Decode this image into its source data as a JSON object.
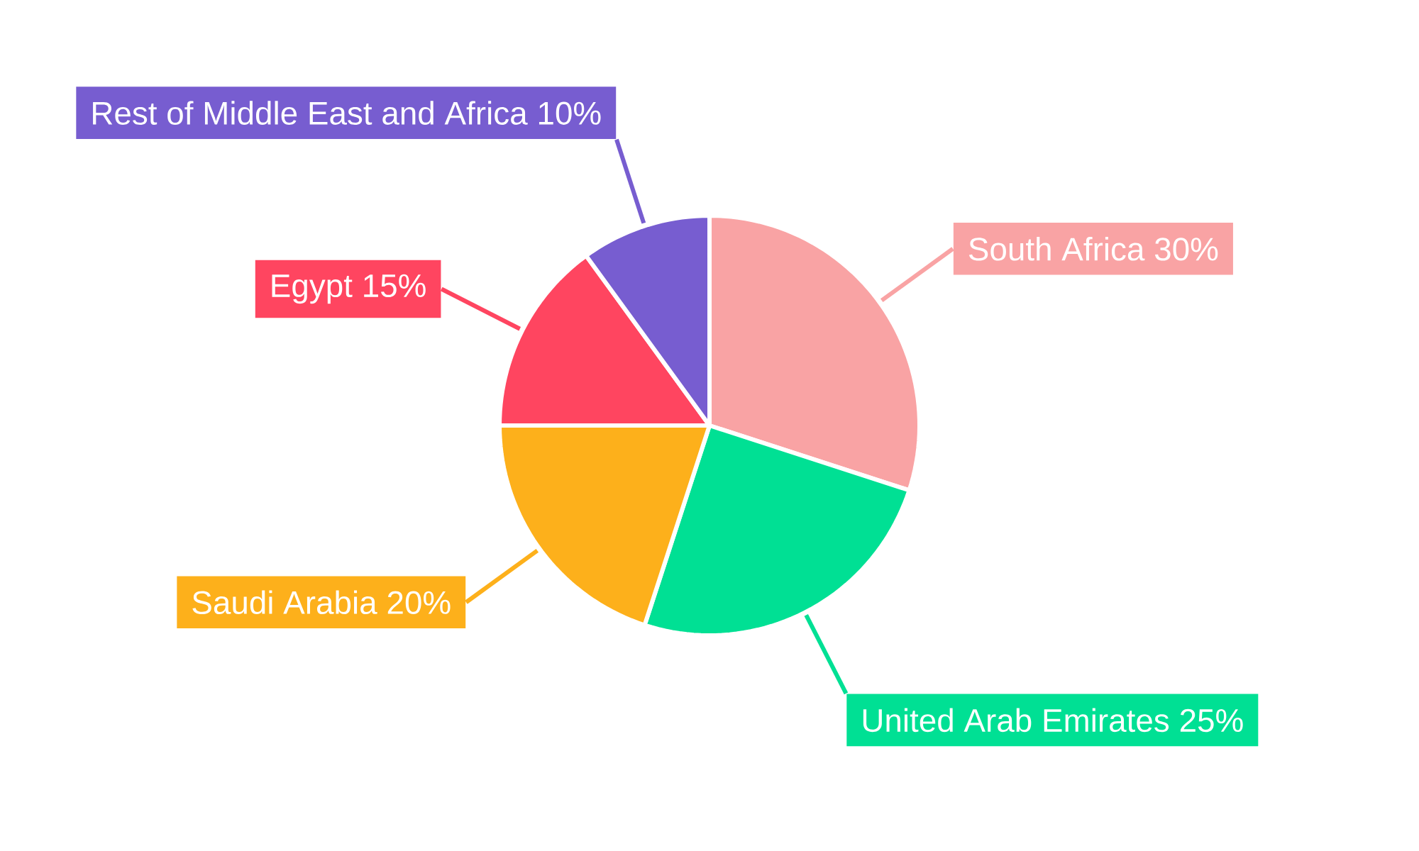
{
  "chart_data": {
    "type": "pie",
    "categories": [
      "South Africa",
      "United Arab Emirates",
      "Saudi Arabia",
      "Egypt",
      "Rest of Middle East and Africa"
    ],
    "values": [
      30,
      25,
      20,
      15,
      10
    ],
    "value_labels": [
      "30%",
      "25%",
      "20%",
      "15%",
      "10%"
    ],
    "colors": [
      "#f9a3a4",
      "#00e094",
      "#fdb01b",
      "#ff4560",
      "#775dd0"
    ]
  }
}
